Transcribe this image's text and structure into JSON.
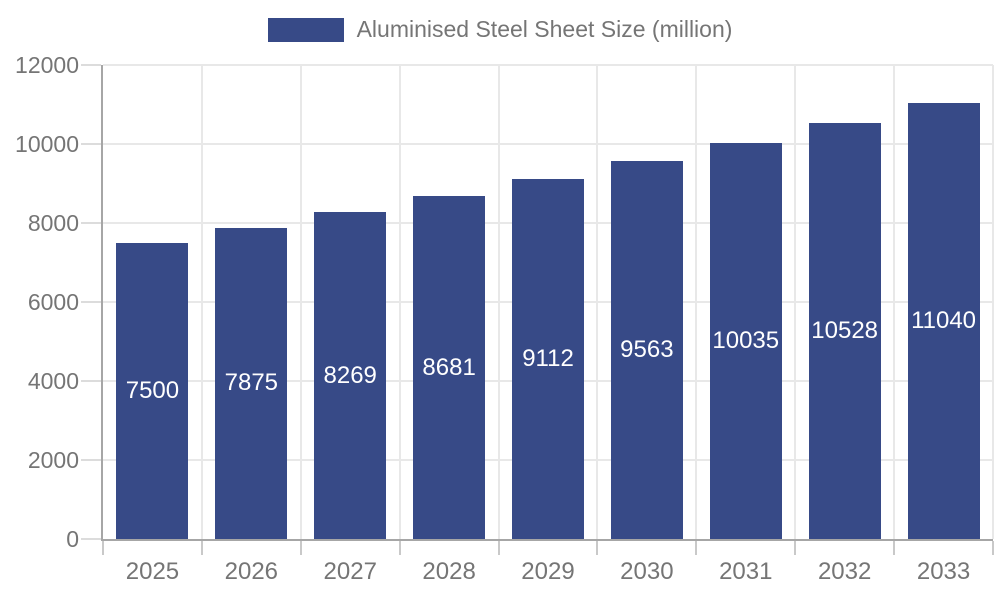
{
  "chart_data": {
    "type": "bar",
    "title": "Aluminised Steel Sheet Size (million)",
    "categories": [
      "2025",
      "2026",
      "2027",
      "2028",
      "2029",
      "2030",
      "2031",
      "2032",
      "2033"
    ],
    "values": [
      7500,
      7875,
      8269,
      8681,
      9112,
      9563,
      10035,
      10528,
      11040
    ],
    "value_labels": [
      "7500",
      "7875",
      "8269",
      "8681",
      "9112",
      "9563",
      "10035",
      "10528",
      "11040"
    ],
    "xlabel": "",
    "ylabel": "",
    "ylim": [
      0,
      12000
    ],
    "yticks": [
      0,
      2000,
      4000,
      6000,
      8000,
      10000,
      12000
    ],
    "grid": true,
    "legend_position": "top-center",
    "colors": {
      "bar": "#374a87",
      "bar_value_text": "#ffffff",
      "axis_text": "#757575",
      "gridline": "#e8e8e8",
      "axis_line": "#a6a6a6",
      "background": "#ffffff"
    }
  }
}
